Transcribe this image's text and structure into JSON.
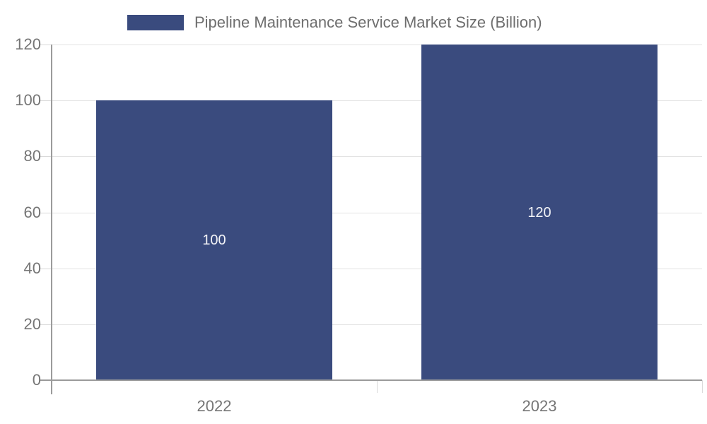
{
  "chart_data": {
    "type": "bar",
    "categories": [
      "2022",
      "2023"
    ],
    "series": [
      {
        "name": "Pipeline Maintenance Service Market Size (Billion)",
        "values": [
          100,
          120
        ]
      }
    ],
    "value_labels": [
      "100",
      "120"
    ],
    "title": "",
    "xlabel": "",
    "ylabel": "",
    "ylim": [
      0,
      120
    ],
    "yticks": [
      0,
      20,
      40,
      60,
      80,
      100,
      120
    ],
    "grid": true,
    "legend_position": "top-center",
    "colors": {
      "bar": "#3a4b7e",
      "gridline": "#e3e3e3",
      "tick": "#d9d9d9",
      "axis": "#9b9b9b",
      "tick_text": "#757575",
      "legend_text": "#6e6e6e",
      "value_text": "#f2f3f7",
      "background": "#ffffff"
    }
  }
}
